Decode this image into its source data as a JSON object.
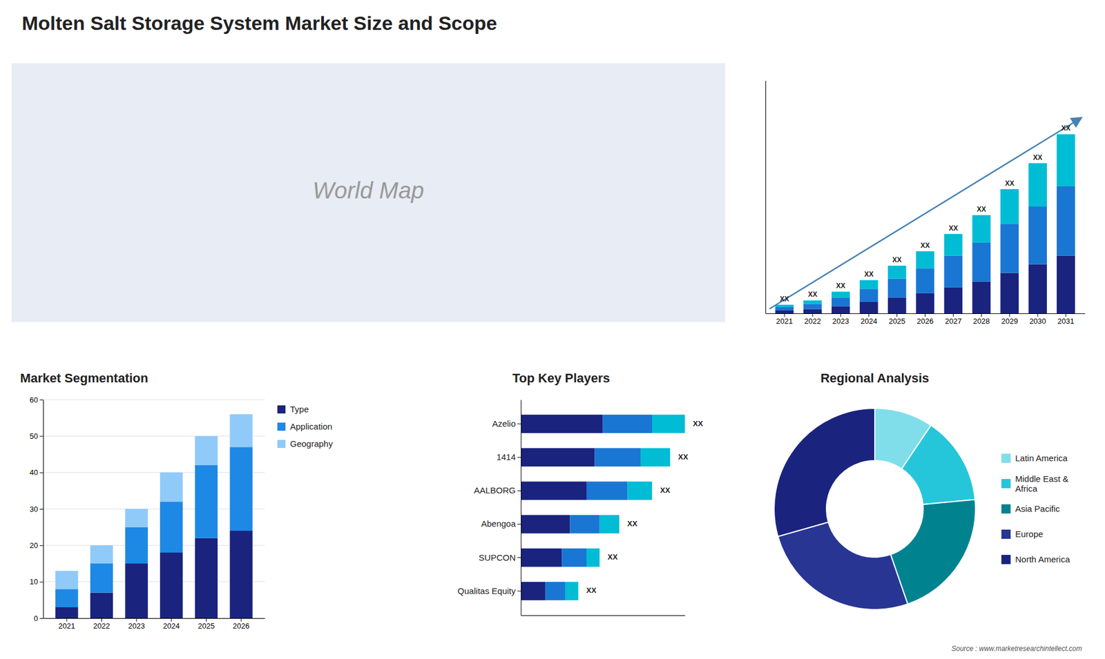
{
  "title": "Molten Salt Storage System Market Size and Scope",
  "annotations": [
    "World Map",
    "Source : www.marketresearchintellect.com"
  ],
  "chart_data": [
    {
      "type": "bar",
      "stacked": true,
      "categories": [
        "2021",
        "2022",
        "2023",
        "2024",
        "2025",
        "2026",
        "2027",
        "2028",
        "2029",
        "2030",
        "2031"
      ],
      "series": [
        {
          "color": "#1a237e",
          "values": [
            1.0,
            1.5,
            2.5,
            4.0,
            5.5,
            7.0,
            9.0,
            11.0,
            14.0,
            17.0,
            20.0
          ]
        },
        {
          "color": "#1976d2",
          "values": [
            1.2,
            1.8,
            3.0,
            4.5,
            6.5,
            8.5,
            11.0,
            13.5,
            17.0,
            20.0,
            24.0
          ]
        },
        {
          "color": "#00bcd4",
          "values": [
            0.8,
            1.2,
            2.0,
            3.0,
            4.5,
            6.0,
            7.5,
            9.5,
            12.0,
            15.0,
            18.0
          ]
        }
      ],
      "ylim": [
        0,
        80.6
      ],
      "tick_labels": "x",
      "grid": false,
      "annotations": [
        "XX",
        "XX",
        "XX",
        "XX",
        "XX",
        "XX",
        "XX",
        "XX",
        "XX",
        "XX",
        "XX"
      ]
    },
    {
      "type": "bar",
      "title": "Market Segmentation",
      "stacked": true,
      "categories": [
        "2021",
        "2022",
        "2023",
        "2024",
        "2025",
        "2026"
      ],
      "series": [
        {
          "name": "Type",
          "color": "#1a237e",
          "values": [
            3,
            7,
            15,
            18,
            22,
            24
          ]
        },
        {
          "name": "Application",
          "color": "#1e88e5",
          "values": [
            5,
            8,
            10,
            14,
            20,
            23
          ]
        },
        {
          "name": "Geography",
          "color": "#90caf9",
          "values": [
            5,
            5,
            5,
            8,
            8,
            9
          ]
        }
      ],
      "ylim": [
        0,
        60
      ],
      "yticks": [
        0,
        10,
        20,
        30,
        40,
        50,
        60
      ],
      "grid": true,
      "legend": "right"
    },
    {
      "type": "bar",
      "title": "Top Key Players",
      "orientation": "horizontal",
      "stacked": true,
      "categories": [
        "Azelio",
        "1414",
        "AALBORG",
        "Abengoa",
        "SUPCON",
        "Qualitas Equity"
      ],
      "series": [
        {
          "color": "#1a237e",
          "values": [
            5.0,
            4.5,
            4.0,
            3.0,
            2.5,
            1.5
          ]
        },
        {
          "color": "#1976d2",
          "values": [
            3.0,
            2.8,
            2.5,
            1.8,
            1.5,
            1.2
          ]
        },
        {
          "color": "#00bcd4",
          "values": [
            2.0,
            1.8,
            1.5,
            1.2,
            0.8,
            0.8
          ]
        }
      ],
      "xlim": [
        0,
        10
      ],
      "tick_labels": "y",
      "grid": false,
      "annotations": [
        "XX",
        "XX",
        "XX",
        "XX",
        "XX",
        "XX"
      ]
    },
    {
      "type": "pie",
      "title": "Regional Analysis",
      "categories": [
        "Latin America",
        "Middle East &\nAfrica",
        "Asia Pacific",
        "Europe",
        "North America"
      ],
      "values": [
        8,
        12,
        18,
        22,
        25
      ],
      "colors": [
        "#80deea",
        "#26c6da",
        "#00838f",
        "#283593",
        "#1a237e"
      ],
      "legend": "right"
    }
  ]
}
